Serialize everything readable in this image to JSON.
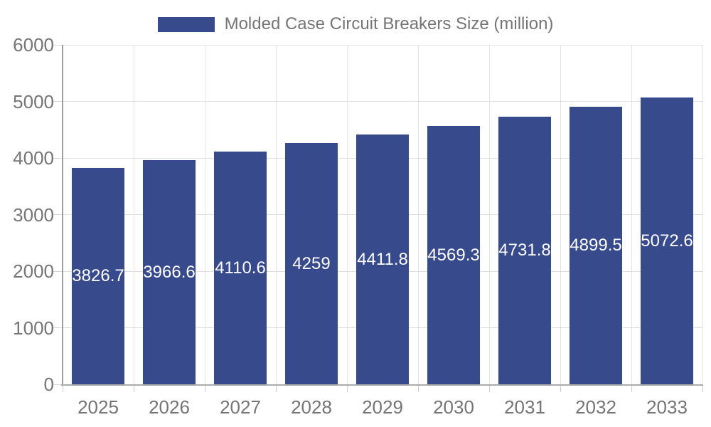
{
  "chart_data": {
    "type": "bar",
    "title": "",
    "categories": [
      "2025",
      "2026",
      "2027",
      "2028",
      "2029",
      "2030",
      "2031",
      "2032",
      "2033"
    ],
    "series": [
      {
        "name": "Molded Case Circuit Breakers Size (million)",
        "values": [
          3826.7,
          3966.6,
          4110.6,
          4259,
          4411.8,
          4569.3,
          4731.8,
          4899.5,
          5072.6
        ]
      }
    ],
    "value_labels": [
      "3826.7",
      "3966.6",
      "4110.6",
      "4259",
      "4411.8",
      "4569.3",
      "4731.8",
      "4899.5",
      "5072.6"
    ],
    "ylim": [
      0,
      6000
    ],
    "yticks": [
      0,
      1000,
      2000,
      3000,
      4000,
      5000,
      6000
    ],
    "grid": true,
    "legend_position": "top",
    "colors": {
      "bar": "#374A8C",
      "axis_text": "#757575",
      "gridline": "#e0e0e0",
      "axis_line": "#9e9e9e",
      "value_label_text": "#ffffff",
      "background": "#ffffff"
    }
  }
}
